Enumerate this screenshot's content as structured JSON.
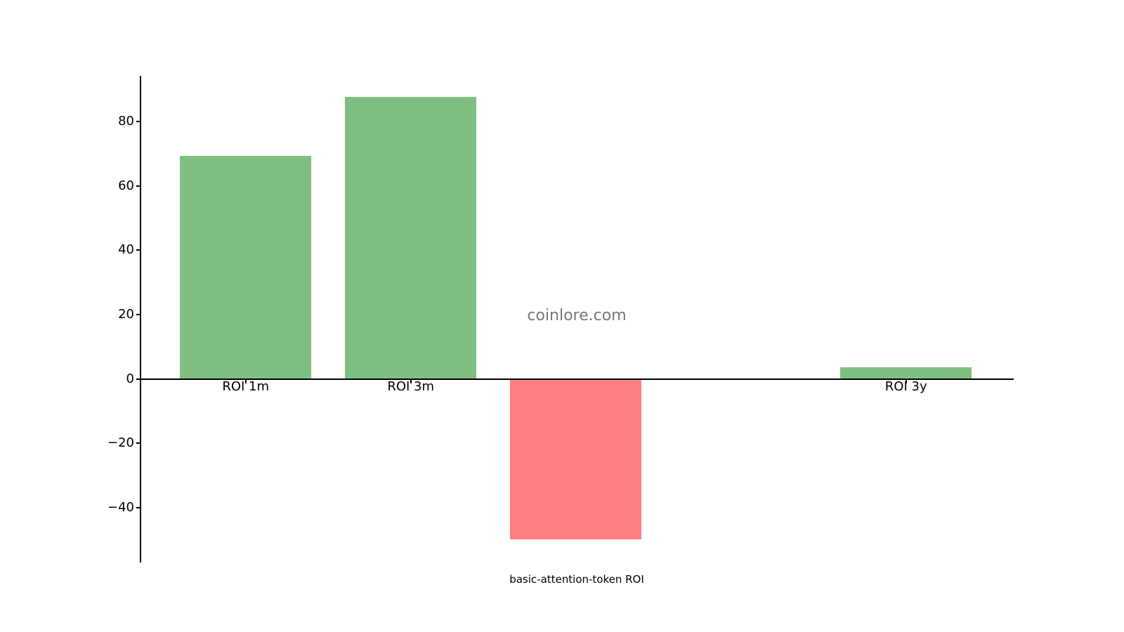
{
  "watermark": {
    "text": "coinlore.com",
    "color": "#777777"
  },
  "chart_data": {
    "type": "bar",
    "title": "basic-attention-token ROI",
    "categories": [
      "ROI 1m",
      "ROI 3m",
      "",
      "ROI 3y"
    ],
    "positions": [
      0,
      1,
      2,
      4
    ],
    "values": [
      69.4,
      87.6,
      -49.8,
      3.7
    ],
    "bar_colors": [
      "#80bf80",
      "#80bf80",
      "#ff8080",
      "#80bf80"
    ],
    "positive_color": "#80bf80",
    "negative_color": "#ff8080",
    "yticks": [
      80,
      60,
      40,
      20,
      0,
      -20,
      -40
    ],
    "xticks": [
      {
        "position": 0,
        "label": "ROI 1m"
      },
      {
        "position": 1,
        "label": "ROI 3m"
      },
      {
        "position": 4,
        "label": "ROI 3y"
      }
    ],
    "ylim": [
      -57,
      94
    ],
    "xlabel": "",
    "ylabel": "",
    "grid": false,
    "legend": null
  }
}
